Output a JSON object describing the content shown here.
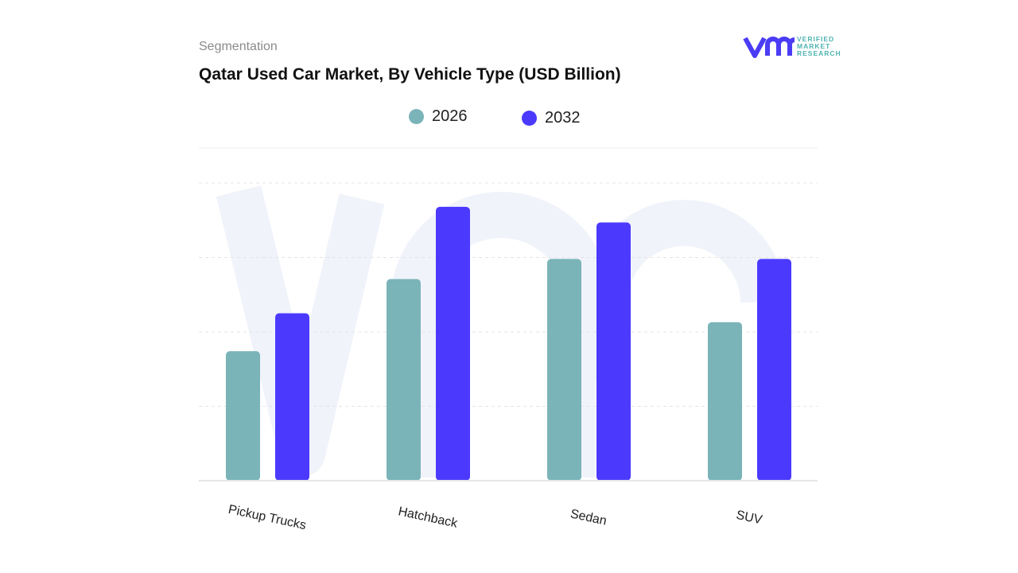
{
  "header": {
    "segment_label": "Segmentation",
    "title": "Qatar Used Car Market, By Vehicle Type (USD Billion)"
  },
  "logo": {
    "mark": "vmr",
    "text_lines": [
      "VERIFIED",
      "MARKET",
      "RESEARCH"
    ],
    "brand_color": "#4b3cf5",
    "text_color": "#4fb3b0"
  },
  "chart_data": {
    "type": "bar",
    "title": "Qatar Used Car Market, By Vehicle Type (USD Billion)",
    "categories": [
      "Pickup Trucks",
      "Hatchback",
      "Sedan",
      "SUV"
    ],
    "series": [
      {
        "name": "2026",
        "color": "#7ab4b8",
        "values": [
          1.74,
          2.71,
          2.98,
          2.13
        ]
      },
      {
        "name": "2032",
        "color": "#4b3afe",
        "values": [
          2.25,
          3.68,
          3.47,
          2.98
        ]
      }
    ],
    "xlabel": "",
    "ylabel": "",
    "ylim": [
      0,
      4.5
    ],
    "y_axis_labels_shown": false,
    "grid": true,
    "legend_position": "top-center",
    "watermark": "vmr"
  }
}
